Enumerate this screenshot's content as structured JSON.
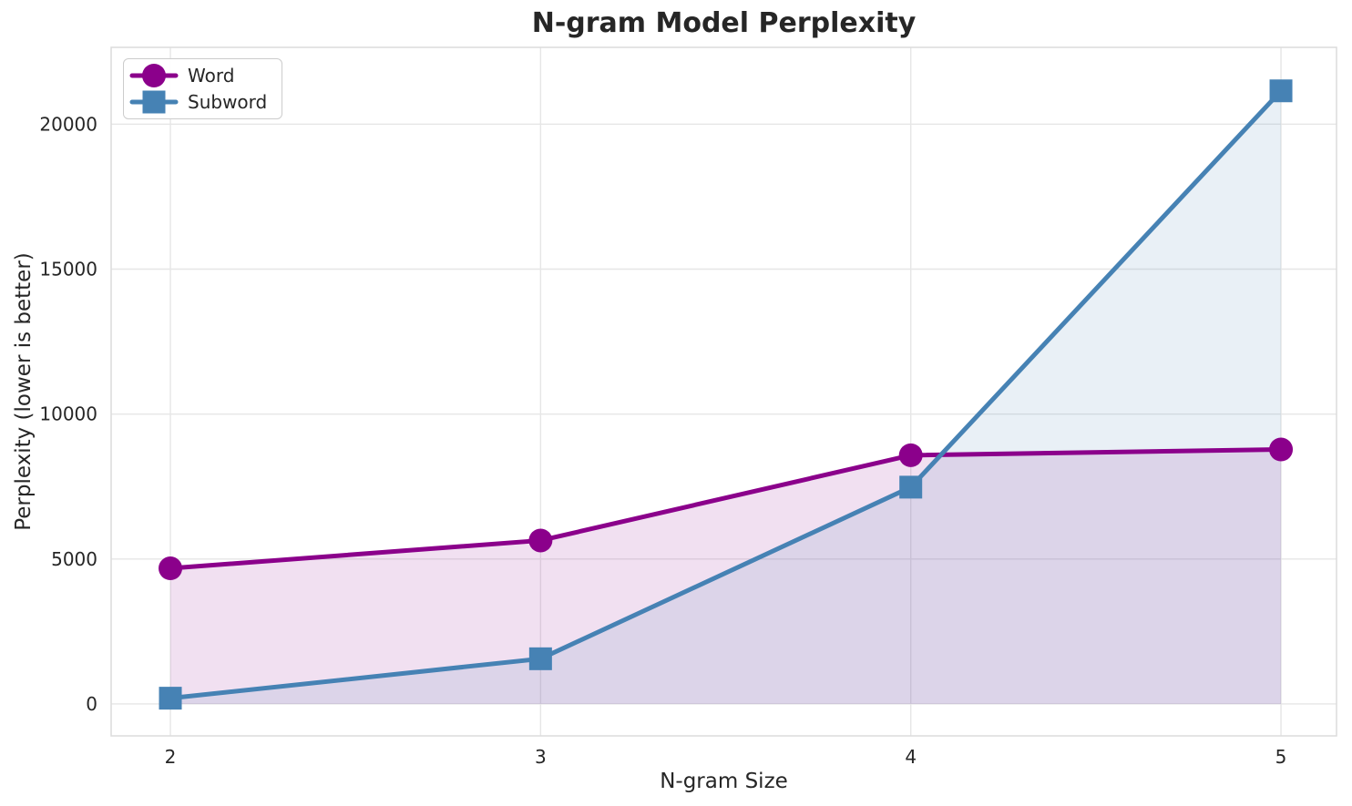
{
  "chart_data": {
    "type": "line",
    "title": "N-gram Model Perplexity",
    "xlabel": "N-gram Size",
    "ylabel": "Perplexity (lower is better)",
    "x": [
      2,
      3,
      4,
      5
    ],
    "x_tick_labels": [
      "2",
      "3",
      "4",
      "5"
    ],
    "y_ticks": [
      0,
      5000,
      10000,
      15000,
      20000
    ],
    "y_tick_labels": [
      "0",
      "5000",
      "10000",
      "15000",
      "20000"
    ],
    "xlim": [
      1.84,
      5.15
    ],
    "ylim": [
      -1100,
      22650
    ],
    "grid": true,
    "legend_position": "upper-left",
    "series": [
      {
        "name": "Word",
        "marker": "circle",
        "color": "#8B008B",
        "fill_opacity": 0.12,
        "area_fill_to": 0,
        "values": [
          4680,
          5640,
          8580,
          8780
        ]
      },
      {
        "name": "Subword",
        "marker": "square",
        "color": "#4682B4",
        "fill_opacity": 0.12,
        "area_fill_to": 0,
        "values": [
          200,
          1560,
          7480,
          21150
        ]
      }
    ]
  },
  "colors": {
    "text": "#262626",
    "grid": "#E6E6E6",
    "spine": "#DCDCDC",
    "background": "#FFFFFF"
  }
}
